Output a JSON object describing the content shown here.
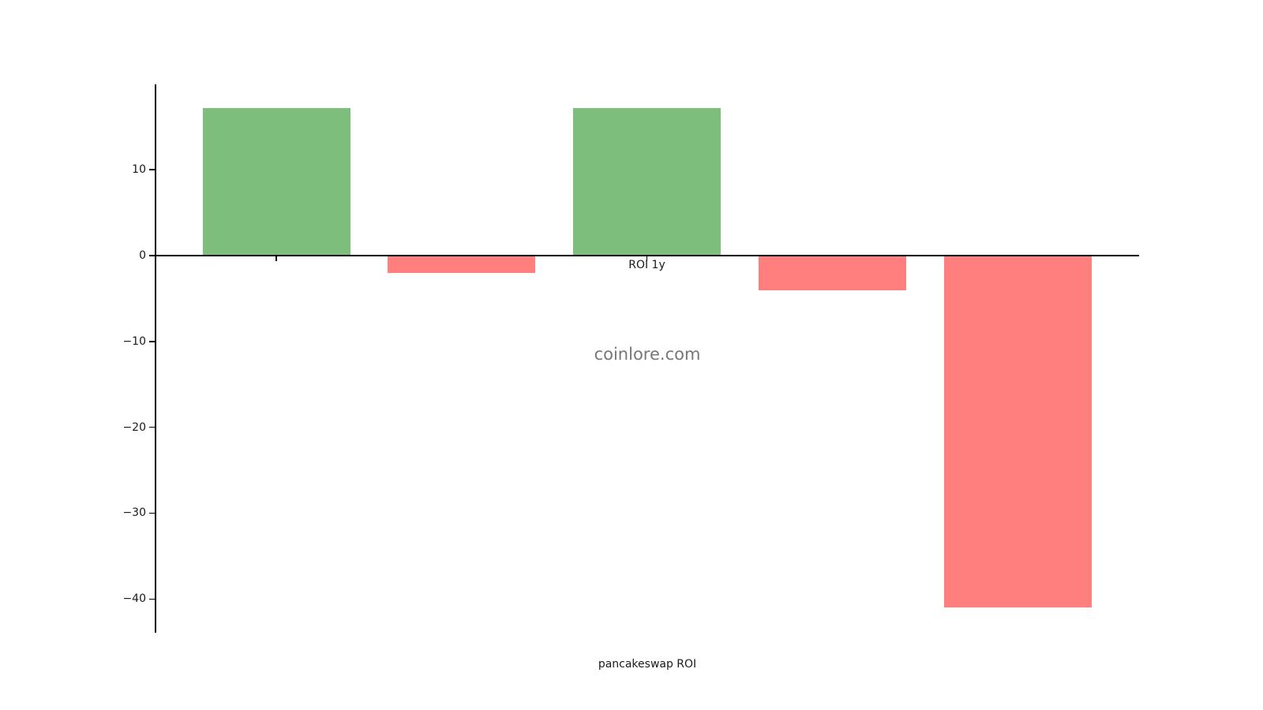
{
  "chart_data": {
    "type": "bar",
    "title": "pancakeswap ROI",
    "watermark": "coinlore.com",
    "categories": [
      "",
      "",
      "ROI 1y",
      "",
      ""
    ],
    "values": [
      17.2,
      -2,
      17.2,
      -4,
      -41
    ],
    "series": [
      {
        "name": "pancakeswap ROI %",
        "values": [
          17.2,
          -2,
          17.2,
          -4,
          -41
        ]
      }
    ],
    "bar_colors": [
      "positive",
      "negative",
      "positive",
      "negative",
      "negative"
    ],
    "positive_color": "#7dbe7d",
    "negative_color": "#ff7f7f",
    "axis_color": "#000000",
    "text_color": "#1a1a1a",
    "watermark_color": "#777777",
    "xlabel": "pancakeswap ROI",
    "ylabel": "",
    "ylim": [
      -43.9,
      20.0
    ],
    "grid": false,
    "legend": "none",
    "yticks": [
      {
        "value": 10,
        "label": "10"
      },
      {
        "value": 0,
        "label": "0"
      },
      {
        "value": -10,
        "label": "−10"
      },
      {
        "value": -20,
        "label": "−20"
      },
      {
        "value": -30,
        "label": "−30"
      },
      {
        "value": -40,
        "label": "−40"
      }
    ],
    "visible_xticks": [
      {
        "bar_index": 0,
        "label": ""
      },
      {
        "bar_index": 2,
        "label": "ROI 1y"
      }
    ]
  }
}
